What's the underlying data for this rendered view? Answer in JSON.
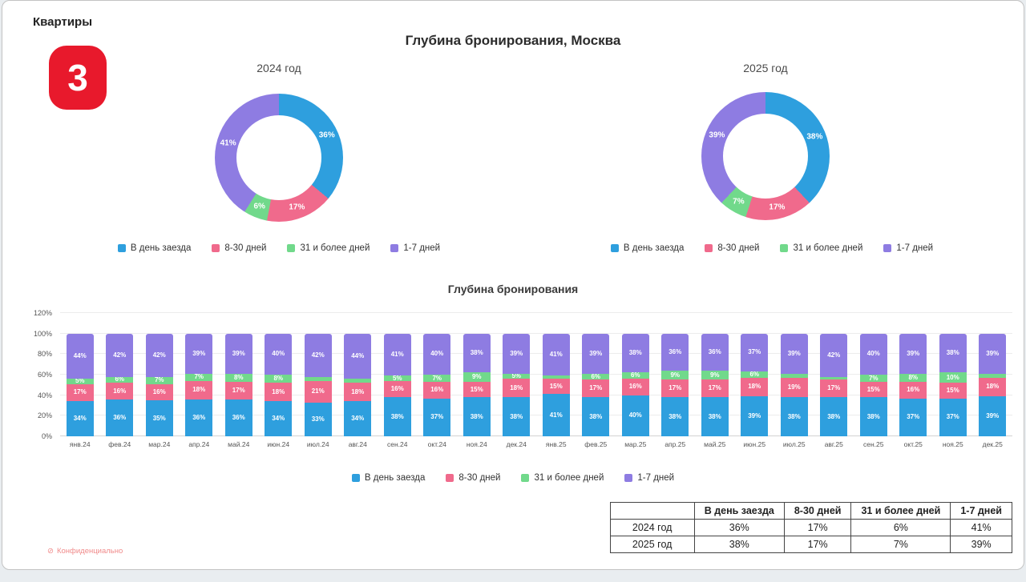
{
  "page": {
    "kvartiry_label": "Квартиры",
    "badge_number": "3",
    "title": "Глубина бронирования, Москва",
    "confidential": "Конфиденциально"
  },
  "colors": {
    "blue": "#2E9FDE",
    "pink": "#F06A8C",
    "green": "#71D98B",
    "purple": "#8E7CE2",
    "badge_red": "#E8192C",
    "watermark": "#F08A8A"
  },
  "legend": {
    "items": [
      {
        "label": "В день заезда",
        "color": "blue"
      },
      {
        "label": "8-30 дней",
        "color": "pink"
      },
      {
        "label": "31 и более дней",
        "color": "green"
      },
      {
        "label": "1-7 дней",
        "color": "purple"
      }
    ]
  },
  "chart_data": [
    {
      "type": "pie",
      "subtype": "donut",
      "title": "2024 год",
      "labels": [
        "В день заезда",
        "8-30 дней",
        "31 и более дней",
        "1-7 дней"
      ],
      "values": [
        36,
        17,
        6,
        41
      ],
      "colors": [
        "blue",
        "pink",
        "green",
        "purple"
      ],
      "legend_position": "bottom"
    },
    {
      "type": "pie",
      "subtype": "donut",
      "title": "2025 год",
      "labels": [
        "В день заезда",
        "8-30 дней",
        "31 и более дней",
        "1-7 дней"
      ],
      "values": [
        38,
        17,
        7,
        39
      ],
      "colors": [
        "blue",
        "pink",
        "green",
        "purple"
      ],
      "legend_position": "bottom"
    },
    {
      "type": "bar",
      "stacked": true,
      "title": "Глубина бронирования",
      "ylim": [
        0,
        120
      ],
      "yticks": [
        "0%",
        "20%",
        "40%",
        "60%",
        "80%",
        "100%",
        "120%"
      ],
      "grid": true,
      "legend_position": "bottom",
      "categories": [
        "янв.24",
        "фев.24",
        "мар.24",
        "апр.24",
        "май.24",
        "июн.24",
        "июл.24",
        "авг.24",
        "сен.24",
        "окт.24",
        "ноя.24",
        "дек.24",
        "янв.25",
        "фев.25",
        "мар.25",
        "апр.25",
        "май.25",
        "июн.25",
        "июл.25",
        "авг.25",
        "сен.25",
        "окт.25",
        "ноя.25",
        "дек.25"
      ],
      "series": [
        {
          "name": "В день заезда",
          "color": "blue",
          "values": [
            34,
            36,
            35,
            36,
            36,
            34,
            33,
            34,
            38,
            37,
            38,
            38,
            41,
            38,
            40,
            38,
            38,
            39,
            38,
            38,
            38,
            37,
            37,
            39
          ]
        },
        {
          "name": "8-30 дней",
          "color": "pink",
          "values": [
            17,
            16,
            16,
            18,
            17,
            18,
            21,
            18,
            16,
            16,
            15,
            18,
            15,
            17,
            16,
            17,
            17,
            18,
            19,
            17,
            15,
            16,
            15,
            18
          ]
        },
        {
          "name": "31 и более дней",
          "color": "green",
          "values": [
            5,
            6,
            7,
            7,
            8,
            8,
            4,
            4,
            5,
            7,
            9,
            5,
            3,
            6,
            6,
            9,
            9,
            6,
            4,
            3,
            7,
            8,
            10,
            4
          ]
        },
        {
          "name": "1-7 дней",
          "color": "purple",
          "values": [
            44,
            42,
            42,
            39,
            39,
            40,
            42,
            44,
            41,
            40,
            38,
            39,
            41,
            39,
            38,
            36,
            36,
            37,
            39,
            42,
            40,
            39,
            38,
            39
          ]
        }
      ]
    },
    {
      "type": "table",
      "columns": [
        "",
        "В день заезда",
        "8-30 дней",
        "31 и более дней",
        "1-7 дней"
      ],
      "rows": [
        [
          "2024 год",
          "36%",
          "17%",
          "6%",
          "41%"
        ],
        [
          "2025 год",
          "38%",
          "17%",
          "7%",
          "39%"
        ]
      ]
    }
  ]
}
